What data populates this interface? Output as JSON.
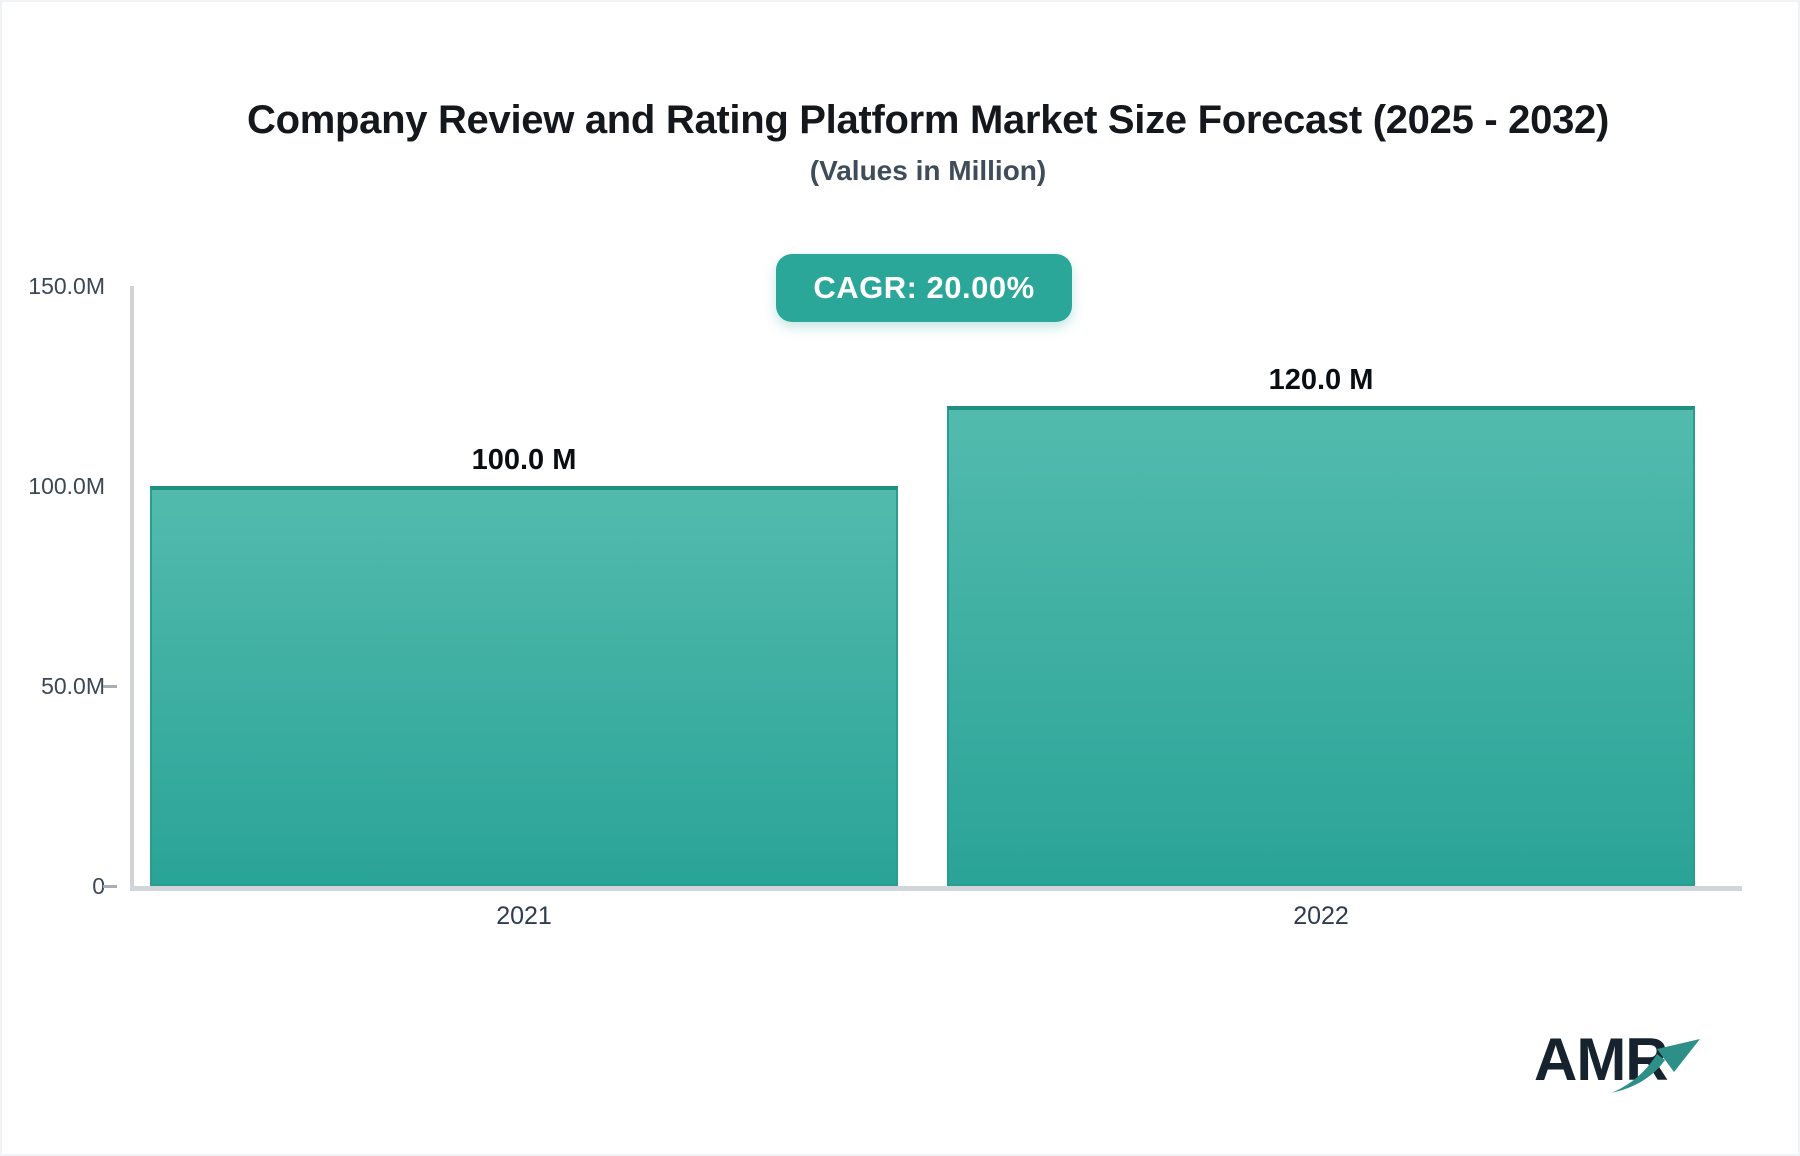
{
  "header": {
    "title": "Company Review and Rating Platform Market Size Forecast (2025 - 2032)",
    "subtitle": "(Values in Million)",
    "cagr_label": "CAGR: 20.00%"
  },
  "chart_data": {
    "type": "bar",
    "title": "Company Review and Rating Platform Market Size Forecast (2025 - 2032)",
    "subtitle": "(Values in Million)",
    "categories": [
      "2021",
      "2022"
    ],
    "values": [
      100,
      120
    ],
    "value_labels": [
      "100.0 M",
      "120.0 M"
    ],
    "unit": "Million",
    "cagr": "20.00%",
    "xlabel": "",
    "ylabel": "",
    "ylim": [
      0,
      150
    ],
    "yticks": [
      "150.0M",
      "100.0M",
      "50.0M",
      "0"
    ],
    "grid": false,
    "legend": false,
    "bar_gradient_top": "#52bbae",
    "bar_gradient_bottom": "#2aa497",
    "bar_border_color": "#2a9c90"
  },
  "colors": {
    "accent_teal": "#2ba79a",
    "axis_line": "#d2d6db",
    "axis_label": "#3b4855",
    "title_text": "#14181c",
    "logo_navy": "#16232e"
  },
  "logo": {
    "text": "AMR"
  }
}
